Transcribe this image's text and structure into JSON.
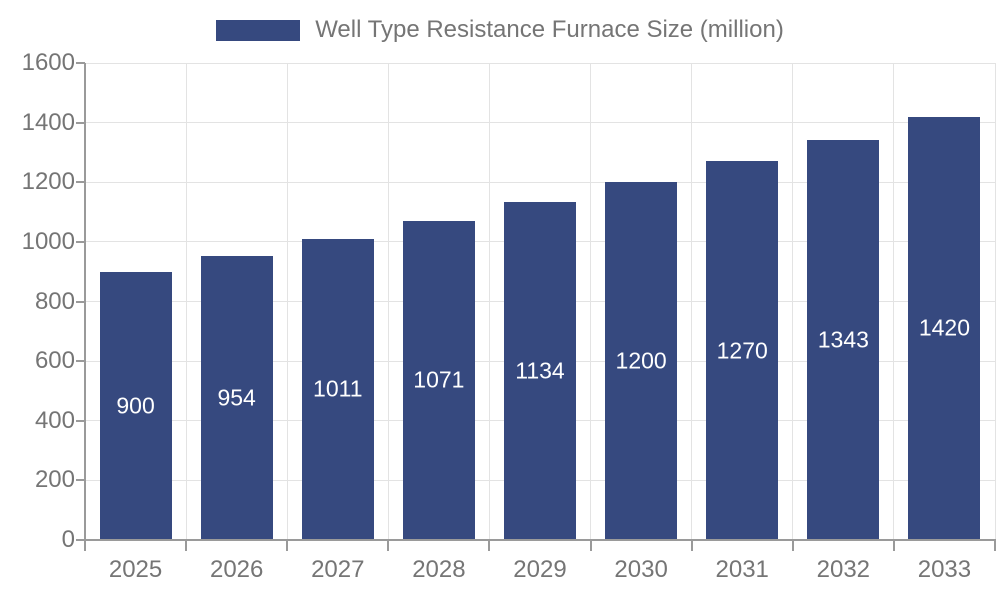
{
  "chart_data": {
    "type": "bar",
    "title": "Well Type Resistance Furnace Size (million)",
    "legend_entries": [
      "Well Type Resistance Furnace Size (million)"
    ],
    "legend_position": "top-center",
    "categories": [
      "2025",
      "2026",
      "2027",
      "2028",
      "2029",
      "2030",
      "2031",
      "2032",
      "2033"
    ],
    "series": [
      {
        "name": "Well Type Resistance Furnace Size (million)",
        "values": [
          900,
          954,
          1011,
          1071,
          1134,
          1200,
          1270,
          1343,
          1420
        ]
      }
    ],
    "xlabel": "",
    "ylabel": "",
    "ylim": [
      0,
      1600
    ],
    "ytick_interval": 200,
    "ytick_labels": [
      "0",
      "200",
      "400",
      "600",
      "800",
      "1000",
      "1200",
      "1400",
      "1600"
    ],
    "grid": true,
    "value_labels_shown": true,
    "colors": {
      "bar": "#36497F",
      "value_label": "#ffffff",
      "axis_text": "#757575",
      "gridline": "#e3e3e3",
      "axis_line": "#9a9a9a",
      "background": "#ffffff"
    }
  }
}
